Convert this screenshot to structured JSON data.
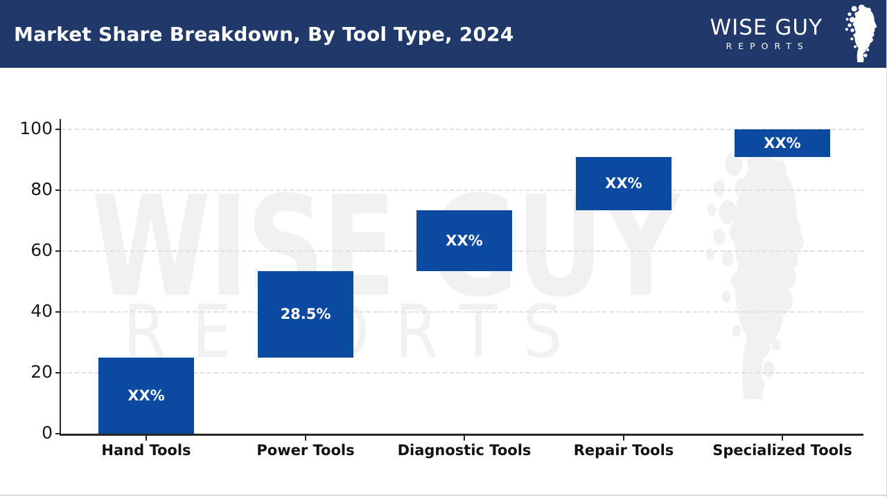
{
  "header": {
    "title": "Market Share Breakdown, By Tool Type, 2024",
    "brand": {
      "name": "WISE GUY",
      "subtitle": "REPORTS"
    }
  },
  "watermark": {
    "line1": "WISE GUY",
    "line2": "REPORTS"
  },
  "colors": {
    "header_bg": "#20386a",
    "bar": "#0c4aa2",
    "bar_label": "#ffffff",
    "grid": "#dfdfdf",
    "axis": "#262626",
    "tick_label": "#1a1a1a",
    "watermark": "#f1f1f1",
    "title_text": "#ffffff"
  },
  "chart_data": {
    "type": "bar",
    "subtype": "floating-waterfall",
    "title": "Market Share Breakdown, By Tool Type, 2024",
    "categories": [
      "Hand Tools",
      "Power Tools",
      "Diagnostic Tools",
      "Repair Tools",
      "Specialized Tools"
    ],
    "bars": [
      {
        "category": "Hand Tools",
        "start": 0,
        "end": 25,
        "label": "XX%"
      },
      {
        "category": "Power Tools",
        "start": 25,
        "end": 53.5,
        "label": "28.5%"
      },
      {
        "category": "Diagnostic Tools",
        "start": 53.5,
        "end": 73.5,
        "label": "XX%"
      },
      {
        "category": "Repair Tools",
        "start": 73.5,
        "end": 91,
        "label": "XX%"
      },
      {
        "category": "Specialized Tools",
        "start": 91,
        "end": 100,
        "label": "XX%"
      }
    ],
    "xlabel": "",
    "ylabel": "",
    "yticks": [
      0,
      20,
      40,
      60,
      80,
      100
    ],
    "ylim": [
      0,
      103.5
    ],
    "grid": "dashed-horizontal",
    "legend": "none"
  }
}
